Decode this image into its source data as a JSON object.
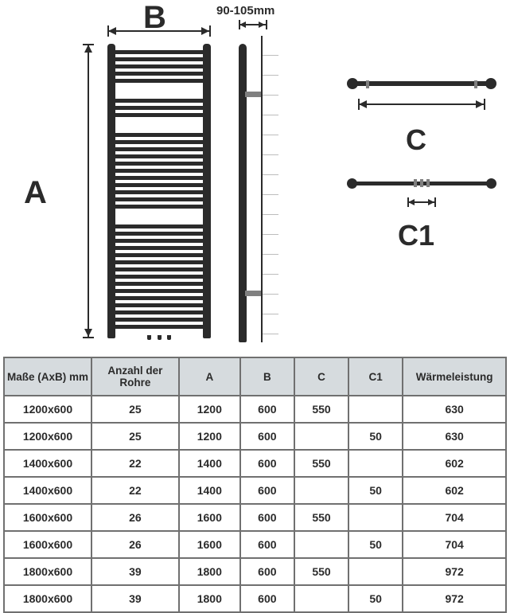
{
  "diagram": {
    "label_A": "A",
    "label_B": "B",
    "label_C": "C",
    "label_C1": "C1",
    "wall_gap": "90-105mm",
    "radiator": {
      "bar_groups": [
        5,
        3,
        11,
        15
      ],
      "color": "#2b2b2b"
    },
    "styling": {
      "stroke_color": "#2b2b2b",
      "bracket_color": "#808080",
      "wall_tile_color": "#bdbdbd",
      "background_color": "#ffffff"
    }
  },
  "table": {
    "type": "table",
    "header_bg": "#d6dbde",
    "border_color": "#707070",
    "columns": [
      "Maße (AxB) mm",
      "Anzahl der Rohre",
      "A",
      "B",
      "C",
      "C1",
      "Wärmeleistung"
    ],
    "rows": [
      [
        "1200x600",
        "25",
        "1200",
        "600",
        "550",
        "",
        "630"
      ],
      [
        "1200x600",
        "25",
        "1200",
        "600",
        "",
        "50",
        "630"
      ],
      [
        "1400x600",
        "22",
        "1400",
        "600",
        "550",
        "",
        "602"
      ],
      [
        "1400x600",
        "22",
        "1400",
        "600",
        "",
        "50",
        "602"
      ],
      [
        "1600x600",
        "26",
        "1600",
        "600",
        "550",
        "",
        "704"
      ],
      [
        "1600x600",
        "26",
        "1600",
        "600",
        "",
        "50",
        "704"
      ],
      [
        "1800x600",
        "39",
        "1800",
        "600",
        "550",
        "",
        "972"
      ],
      [
        "1800x600",
        "39",
        "1800",
        "600",
        "",
        "50",
        "972"
      ]
    ]
  }
}
